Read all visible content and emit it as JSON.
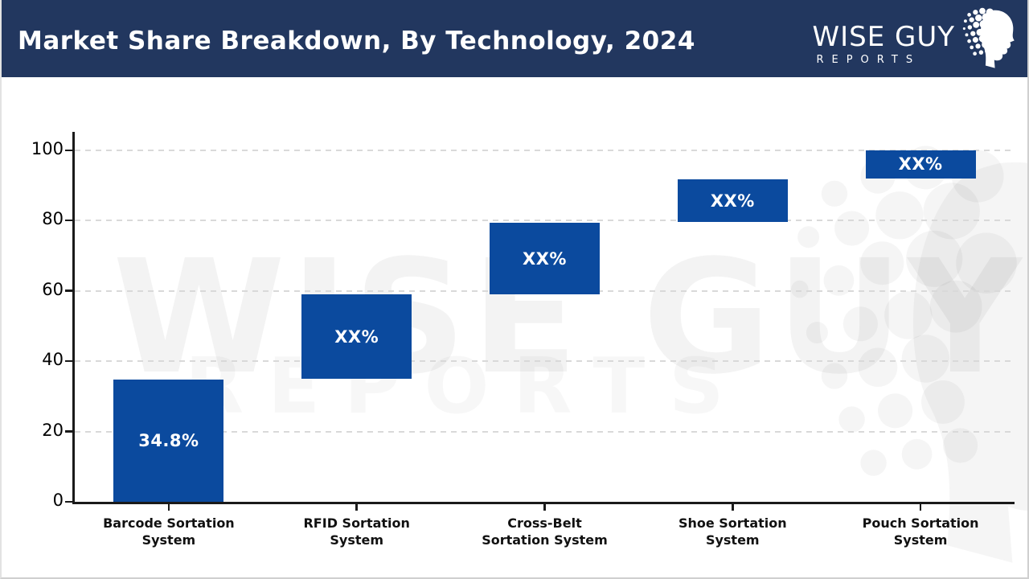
{
  "header": {
    "title": "Market Share Breakdown, By Technology, 2024",
    "logo": {
      "line1": "WISE GUY",
      "line2": "REPORTS"
    }
  },
  "watermark": {
    "line1": "WISE GUY",
    "line2": "REPORTS"
  },
  "colors": {
    "header_bg": "#22375f",
    "bar": "#0b4a9e",
    "bar_label": "#ffffff",
    "grid": "#d9d9d9",
    "axis": "#1a1a1a",
    "title": "#ffffff"
  },
  "chart_data": {
    "type": "bar",
    "subtype": "floating-waterfall",
    "title": "Market Share Breakdown, By Technology, 2024",
    "ylabel": "",
    "xlabel": "",
    "categories": [
      "Barcode Sortation System",
      "RFID Sortation System",
      "Cross-Belt Sortation System",
      "Shoe Sortation System",
      "Pouch Sortation System"
    ],
    "bars": [
      {
        "category_lines": [
          "Barcode Sortation",
          "System"
        ],
        "start": 0,
        "end": 34.8,
        "label": "34.8%"
      },
      {
        "category_lines": [
          "RFID Sortation",
          "System"
        ],
        "start": 35,
        "end": 59,
        "label": "XX%"
      },
      {
        "category_lines": [
          "Cross-Belt",
          "Sortation System"
        ],
        "start": 59,
        "end": 79.3,
        "label": "XX%"
      },
      {
        "category_lines": [
          "Shoe Sortation",
          "System"
        ],
        "start": 79.5,
        "end": 91.8,
        "label": "XX%"
      },
      {
        "category_lines": [
          "Pouch Sortation",
          "System"
        ],
        "start": 92,
        "end": 100,
        "label": "XX%"
      }
    ],
    "yticks": [
      0,
      20,
      40,
      60,
      80,
      100
    ],
    "ylim": [
      0,
      105.2
    ],
    "grid": "horizontal-dashed",
    "legend": "none"
  }
}
